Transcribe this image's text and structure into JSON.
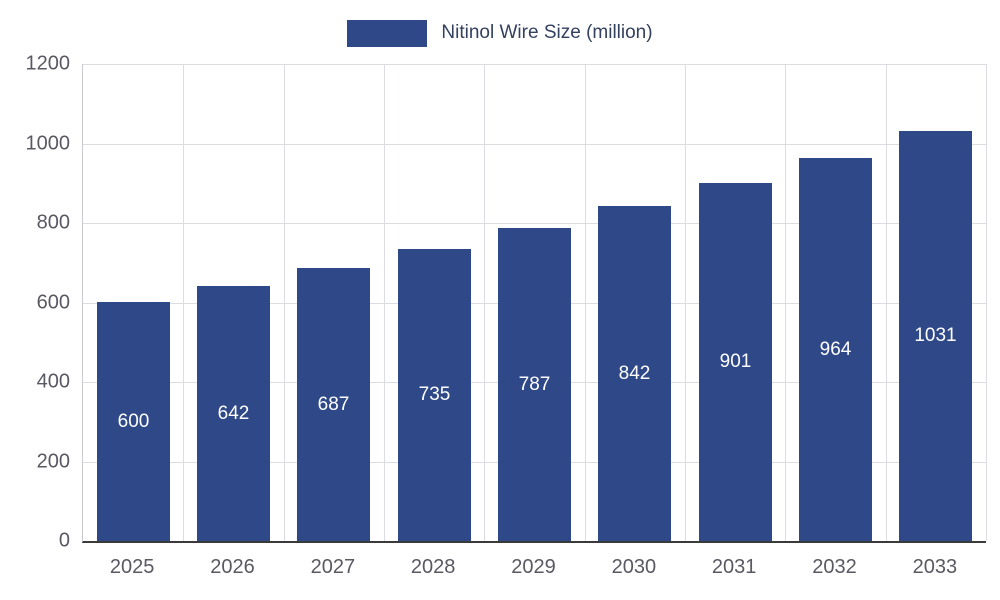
{
  "chart_data": {
    "type": "bar",
    "title": "Nitinol Wire Size (million)",
    "legend": {
      "label": "Nitinol Wire Size (million)",
      "position": "top"
    },
    "categories": [
      "2025",
      "2026",
      "2027",
      "2028",
      "2029",
      "2030",
      "2031",
      "2032",
      "2033"
    ],
    "series": [
      {
        "name": "Nitinol Wire Size (million)",
        "values": [
          600,
          642,
          687,
          735,
          787,
          842,
          901,
          964,
          1031
        ]
      }
    ],
    "xlabel": "",
    "ylabel": "",
    "ylim": [
      0,
      1200
    ],
    "yticks": [
      0,
      200,
      400,
      600,
      800,
      1000,
      1200
    ],
    "grid": "on",
    "colors": {
      "bar": "#2F4888",
      "bar_label": "#ffffff",
      "grid": "#dcdce3",
      "axis_text": "#595963",
      "legend_text": "#33415e",
      "axis_line": "#3a3a3a"
    }
  }
}
